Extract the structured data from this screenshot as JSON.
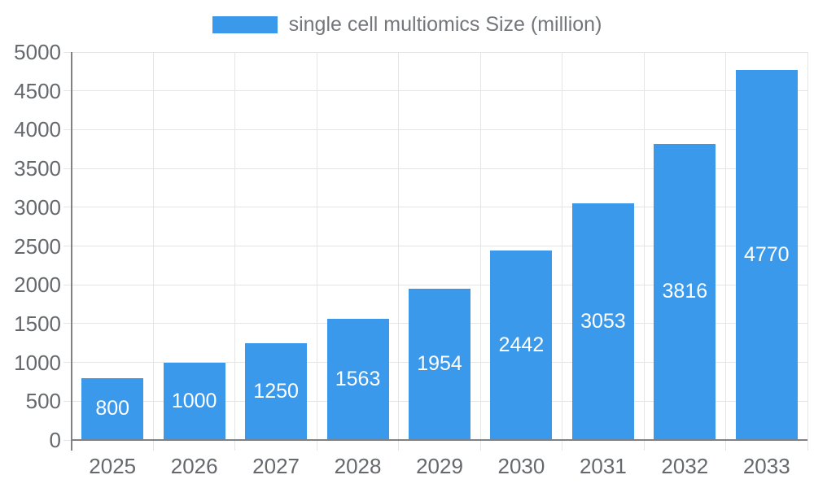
{
  "chart_data": {
    "type": "bar",
    "title": "",
    "xlabel": "",
    "ylabel": "",
    "legend_label": "single cell multiomics Size (million)",
    "legend_position": "top",
    "categories": [
      "2025",
      "2026",
      "2027",
      "2028",
      "2029",
      "2030",
      "2031",
      "2032",
      "2033"
    ],
    "values": [
      800,
      1000,
      1250,
      1563,
      1954,
      2442,
      3053,
      3816,
      4770
    ],
    "ylim": [
      0,
      5000
    ],
    "ytick_step": 500,
    "yticks": [
      0,
      500,
      1000,
      1500,
      2000,
      2500,
      3000,
      3500,
      4000,
      4500,
      5000
    ],
    "grid": true,
    "value_labels": "centered-white-inside-bars"
  },
  "colors": {
    "bar": "#3b99ec",
    "grid": "#e5e5e5",
    "axis": "#7f8184",
    "tick_text": "#65696e",
    "legend_text": "#73777b",
    "value_text": "#ffffff",
    "background": "#ffffff"
  }
}
